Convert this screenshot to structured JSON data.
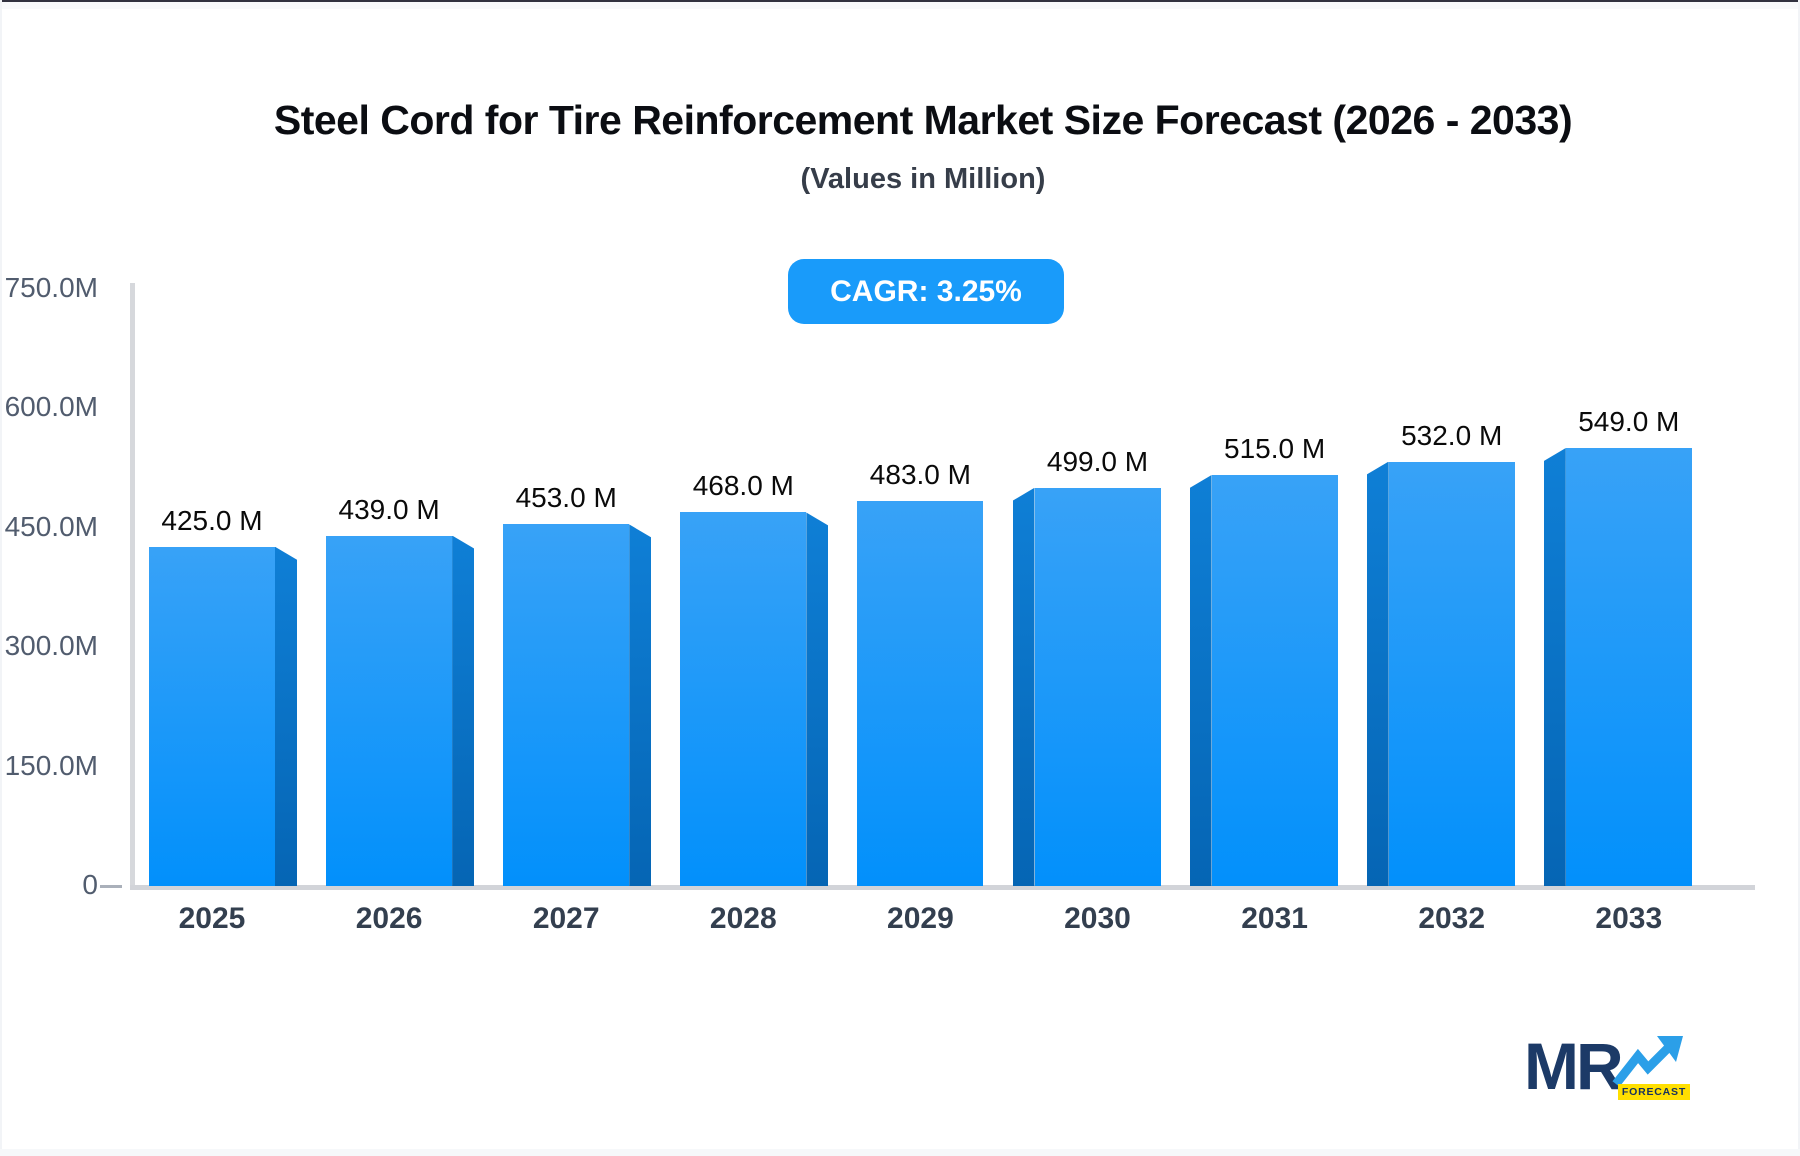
{
  "chart_data": {
    "type": "bar",
    "title": "Steel Cord for Tire Reinforcement Market Size Forecast (2026 - 2033)",
    "subtitle": "(Values in Million)",
    "cagr_label": "CAGR: 3.25%",
    "categories": [
      "2025",
      "2026",
      "2027",
      "2028",
      "2029",
      "2030",
      "2031",
      "2032",
      "2033"
    ],
    "values": [
      425,
      439,
      453,
      468,
      483,
      499,
      515,
      532,
      549
    ],
    "value_labels": [
      "425.0 M",
      "439.0 M",
      "453.0 M",
      "468.0 M",
      "483.0 M",
      "499.0 M",
      "515.0 M",
      "532.0 M",
      "549.0 M"
    ],
    "unit": "Million",
    "y_ticks": [
      {
        "label": "750.0M",
        "value": 750
      },
      {
        "label": "600.0M",
        "value": 600
      },
      {
        "label": "450.0M",
        "value": 450
      },
      {
        "label": "300.0M",
        "value": 300
      },
      {
        "label": "150.0M",
        "value": 150
      },
      {
        "label": "0",
        "value": 0
      }
    ],
    "ylim": [
      0,
      750
    ],
    "grid": false,
    "legend": "none",
    "colors": {
      "bar_top": "#38a2f7",
      "bar_bottom": "#0290fb",
      "bar_side_top": "#0f7fd6",
      "bar_side_bottom": "#0565b4",
      "axis": "#d2d4d9",
      "badge_bg": "#199bfa",
      "badge_text": "#ffffff",
      "value_label": "#0a0a0a",
      "x_label": "#333f4f",
      "y_label": "#515c6e",
      "title": "#0b0d12",
      "subtitle": "#363d49"
    }
  },
  "logo": {
    "mr_text": "MR",
    "forecast_text": "FORECAST",
    "navy": "#1c3a67",
    "arrow_blue": "#2b9fe8",
    "yellow": "#ffdf00"
  }
}
